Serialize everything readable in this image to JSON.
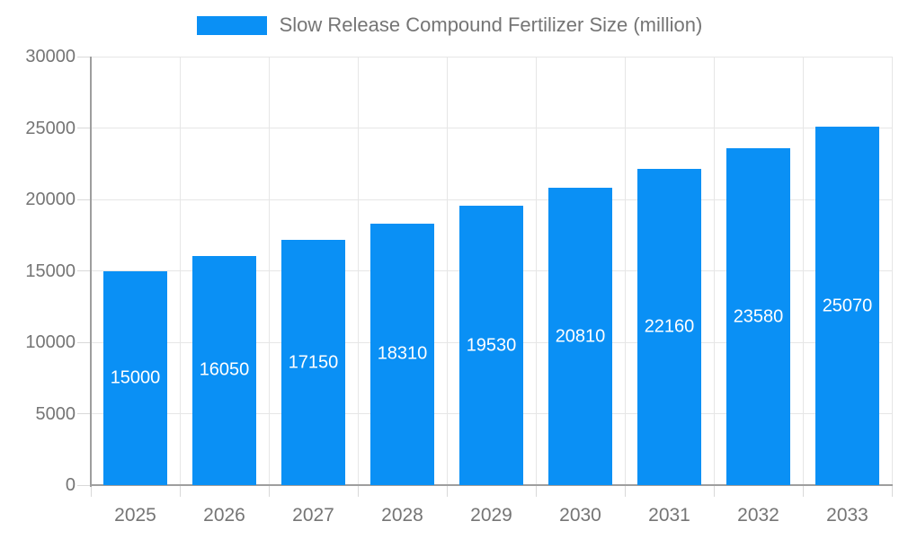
{
  "chart_data": {
    "type": "bar",
    "title": "Slow Release Compound Fertilizer Size (million)",
    "categories": [
      "2025",
      "2026",
      "2027",
      "2028",
      "2029",
      "2030",
      "2031",
      "2032",
      "2033"
    ],
    "values": [
      15000,
      16050,
      17150,
      18310,
      19530,
      20810,
      22160,
      23580,
      25070
    ],
    "bar_labels": [
      "15000",
      "16050",
      "17150",
      "18310",
      "19530",
      "20810",
      "22160",
      "23580",
      "25070"
    ],
    "xlabel": "",
    "ylabel": "",
    "ylim": [
      0,
      30000
    ],
    "ytick_step": 5000,
    "ytick_labels": [
      "0",
      "5000",
      "10000",
      "15000",
      "20000",
      "25000",
      "30000"
    ],
    "legend_position": "top-center",
    "grid": "on",
    "colors": {
      "bar": "#0a90f5",
      "axis_text": "#757575",
      "bar_label_text": "#ffffff",
      "grid_line": "#e6e6e6",
      "tick_line": "#d9d9d9",
      "axis_line": "#9e9e9e",
      "background": "#ffffff"
    }
  }
}
